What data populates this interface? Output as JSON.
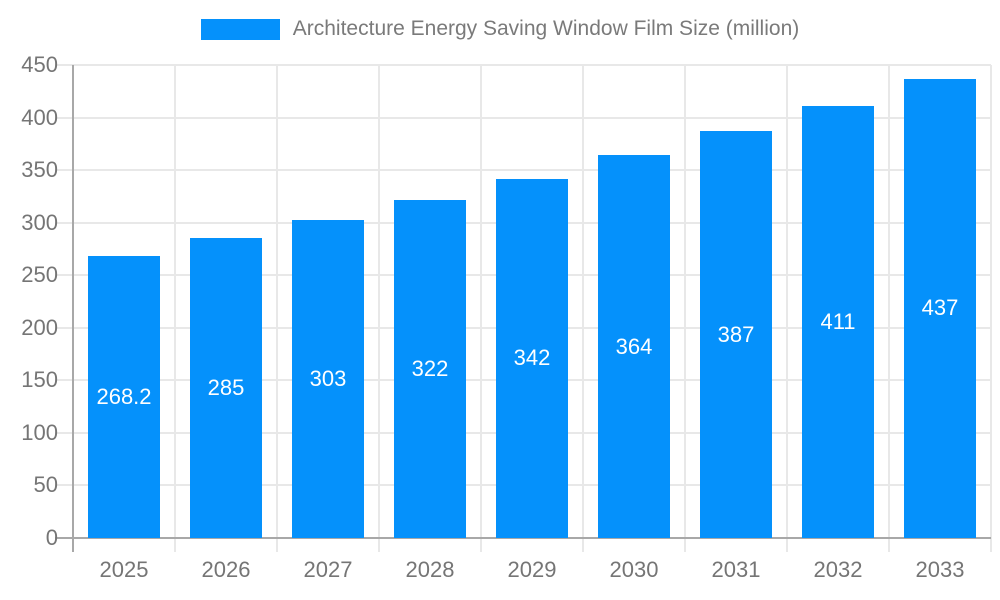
{
  "legend": {
    "label": "Architecture Energy Saving Window Film Size (million)"
  },
  "colors": {
    "bar": "#0591fb",
    "title_text": "#7a7a7a",
    "axis_text": "#757575",
    "grid": "#e8e8e8",
    "axis_line": "#a8a8a8",
    "value_text": "#ffffff",
    "background": "#ffffff"
  },
  "chart_data": {
    "type": "bar",
    "title": "Architecture Energy Saving Window Film Size (million)",
    "categories": [
      "2025",
      "2026",
      "2027",
      "2028",
      "2029",
      "2030",
      "2031",
      "2032",
      "2033"
    ],
    "values": [
      268.2,
      285,
      303,
      322,
      342,
      364,
      387,
      411,
      437
    ],
    "value_labels": [
      "268.2",
      "285",
      "303",
      "322",
      "342",
      "364",
      "387",
      "411",
      "437"
    ],
    "xlabel": "",
    "ylabel": "",
    "ylim": [
      0,
      450
    ],
    "yticks": [
      0,
      50,
      100,
      150,
      200,
      250,
      300,
      350,
      400,
      450
    ],
    "grid": true,
    "legend_position": "top",
    "value_label_position": "center-of-bar"
  }
}
